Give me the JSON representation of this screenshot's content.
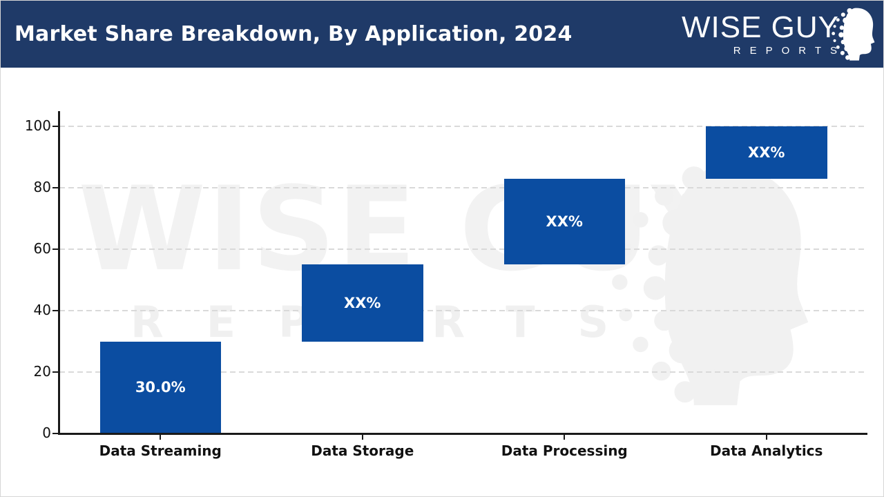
{
  "header": {
    "title": "Market Share Breakdown, By Application, 2024",
    "logo": {
      "wordmark": "WISE GUY",
      "subtext": "REPORTS"
    }
  },
  "watermark": {
    "wordmark": "WISE GUY",
    "subtext": "REPORTS"
  },
  "chart_data": {
    "type": "bar",
    "subtype": "waterfall",
    "title": "Market Share Breakdown, By Application, 2024",
    "categories": [
      "Data Streaming",
      "Data Storage",
      "Data Processing",
      "Data Analytics"
    ],
    "series": [
      {
        "name": "Market Share",
        "segments": [
          {
            "category": "Data Streaming",
            "start": 0,
            "end": 30,
            "label": "30.0%"
          },
          {
            "category": "Data Storage",
            "start": 30,
            "end": 55,
            "label": "XX%"
          },
          {
            "category": "Data Processing",
            "start": 55,
            "end": 83,
            "label": "XX%"
          },
          {
            "category": "Data Analytics",
            "start": 83,
            "end": 100,
            "label": "XX%"
          }
        ]
      }
    ],
    "xlabel": "",
    "ylabel": "",
    "yticks": [
      0,
      20,
      40,
      60,
      80,
      100
    ],
    "ylim": [
      0,
      105
    ],
    "grid": "horizontal-dashed",
    "legend": "none",
    "colors": {
      "bar": "#0b4da1",
      "header_bg": "#1f3a68",
      "axis": "#1a1a1a",
      "gridline": "#d9d9d9",
      "bar_label": "#ffffff",
      "watermark": "#f1f1f1"
    }
  }
}
